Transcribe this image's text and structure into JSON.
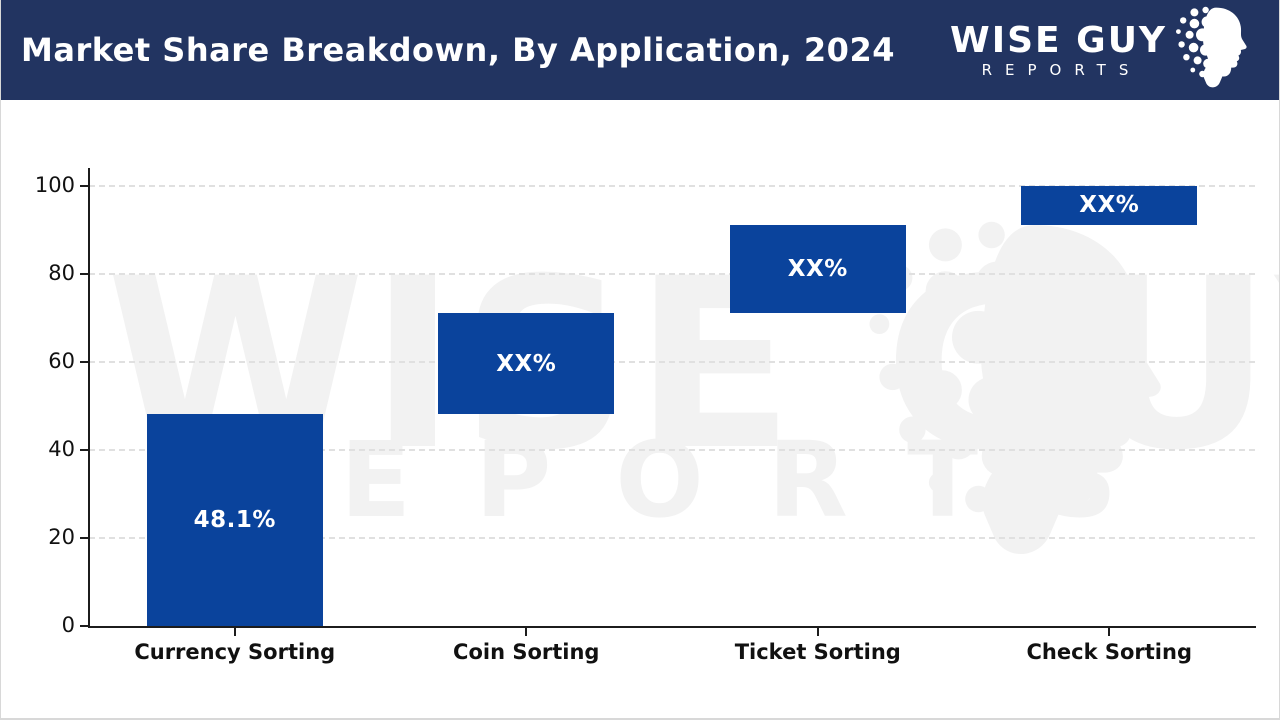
{
  "header": {
    "title": "Market Share Breakdown, By Application, 2024",
    "background": "#223461",
    "logo": {
      "line1": "WISE GUY",
      "line2": "REPORTS"
    }
  },
  "watermark": {
    "line1": "WISE GUY",
    "line2": "REPORTS"
  },
  "chart_data": {
    "type": "bar",
    "variant": "waterfall",
    "title": "Market Share Breakdown, By Application, 2024",
    "categories": [
      "Currency Sorting",
      "Coin Sorting",
      "Ticket Sorting",
      "Check Sorting"
    ],
    "series": [
      {
        "name": "Market Share",
        "segments": [
          {
            "start": 0,
            "end": 48.1,
            "label": "48.1%"
          },
          {
            "start": 48.1,
            "end": 71,
            "label": "XX%"
          },
          {
            "start": 71,
            "end": 91,
            "label": "XX%"
          },
          {
            "start": 91,
            "end": 100,
            "label": "XX%"
          }
        ]
      }
    ],
    "xlabel": "",
    "ylabel": "",
    "ylim": [
      0,
      105
    ],
    "yticks": [
      0,
      20,
      40,
      60,
      80,
      100
    ],
    "grid": "dashed-horizontal",
    "legend": "none",
    "bar_color": "#0a439c",
    "bar_label_color": "#ffffff",
    "axis_color": "#1c1c1c",
    "gridline_color": "#e0e0e0"
  }
}
